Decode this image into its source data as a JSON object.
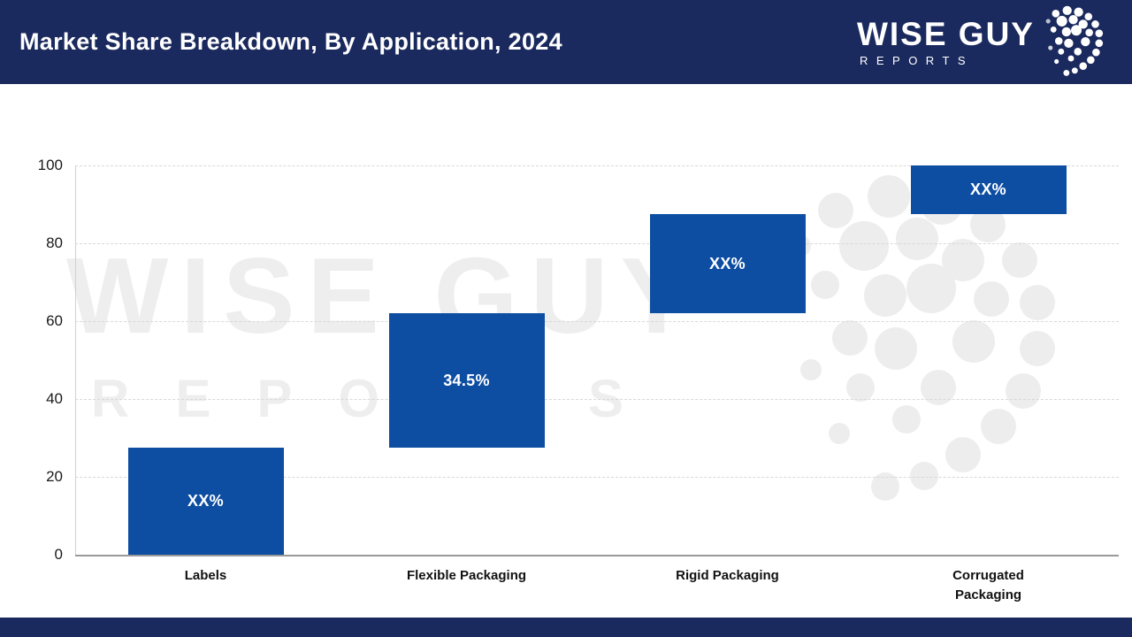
{
  "header": {
    "title": "Market Share Breakdown, By Application, 2024",
    "logo": {
      "line1": "WISE GUY",
      "line2": "REPORTS"
    }
  },
  "watermark": {
    "line1": "WISE GUY",
    "line2": "REPORTS"
  },
  "colors": {
    "header_navy": "#1b2a5e",
    "bar_blue": "#0d4da2",
    "watermark_gray": "#eeeeee"
  },
  "chart_data": {
    "type": "bar",
    "subtype": "waterfall",
    "title": "Market Share Breakdown, By Application, 2024",
    "categories": [
      "Labels",
      "Flexible Packaging",
      "Rigid Packaging",
      "Corrugated\nPackaging"
    ],
    "segments": [
      {
        "category": "Labels",
        "start": 0,
        "end": 27.5,
        "value_label": "XX%"
      },
      {
        "category": "Flexible Packaging",
        "start": 27.5,
        "end": 62,
        "value_label": "34.5%"
      },
      {
        "category": "Rigid Packaging",
        "start": 62,
        "end": 87.5,
        "value_label": "XX%"
      },
      {
        "category": "Corrugated Packaging",
        "start": 87.5,
        "end": 100,
        "value_label": "XX%"
      }
    ],
    "yticks": [
      0,
      20,
      40,
      60,
      80,
      100
    ],
    "ylim": [
      0,
      100
    ],
    "xlabel": "",
    "ylabel": "",
    "grid": "dashed-horizontal",
    "legend": "none",
    "bar_color": "#0d4da2",
    "value_label_color": "#ffffff"
  }
}
